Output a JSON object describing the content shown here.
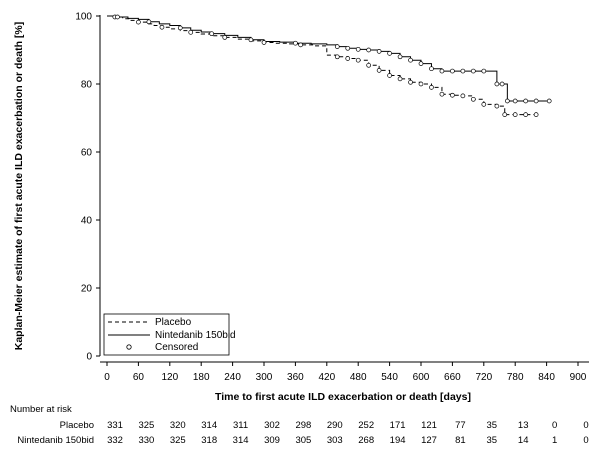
{
  "chart_data": {
    "type": "line",
    "subtype": "kaplan-meier",
    "title": "",
    "xlabel": "Time to first acute ILD exacerbation or death  [days]",
    "ylabel": "Kaplan-Meier estimate of first acute ILD exacerbation or death [%]",
    "xlim": [
      0,
      900
    ],
    "ylim": [
      0,
      100
    ],
    "x_ticks": [
      0,
      60,
      120,
      180,
      240,
      300,
      360,
      420,
      480,
      540,
      600,
      660,
      720,
      780,
      840,
      900
    ],
    "y_ticks": [
      0,
      20,
      40,
      60,
      80,
      100
    ],
    "grid": false,
    "legend_position": "bottom-left",
    "legend": [
      "Placebo",
      "Nintedanib 150bid",
      "Censored"
    ],
    "series": [
      {
        "name": "Placebo",
        "line_style": "dashed",
        "x": [
          0,
          15,
          30,
          45,
          60,
          75,
          90,
          105,
          120,
          140,
          160,
          180,
          200,
          225,
          250,
          275,
          300,
          320,
          345,
          370,
          395,
          420,
          440,
          460,
          480,
          500,
          520,
          540,
          560,
          580,
          600,
          620,
          640,
          660,
          680,
          700,
          720,
          745,
          760,
          780,
          800,
          820
        ],
        "y": [
          100,
          99.7,
          99.2,
          98.7,
          98.2,
          97.7,
          97.2,
          96.7,
          96.2,
          95.7,
          95.2,
          94.7,
          94.2,
          93.7,
          93.2,
          92.7,
          92.2,
          92.0,
          91.8,
          91.5,
          91.2,
          88.5,
          88.0,
          87.5,
          87.0,
          85.5,
          84.0,
          82.5,
          81.5,
          80.5,
          80.0,
          79.0,
          77.0,
          76.7,
          76.5,
          75.5,
          74.0,
          73.5,
          71.0,
          71.0,
          71.0,
          71.0
        ]
      },
      {
        "name": "Nintedanib 150bid",
        "line_style": "solid",
        "x": [
          0,
          20,
          40,
          60,
          80,
          100,
          120,
          140,
          160,
          180,
          200,
          225,
          250,
          275,
          300,
          330,
          360,
          390,
          420,
          440,
          460,
          480,
          500,
          520,
          540,
          560,
          580,
          600,
          620,
          640,
          660,
          680,
          700,
          720,
          745,
          755,
          765,
          780,
          800,
          820,
          845
        ],
        "y": [
          100,
          99.7,
          99.3,
          99.0,
          98.3,
          97.7,
          97.2,
          96.5,
          95.8,
          95.3,
          94.8,
          94.3,
          93.7,
          93.0,
          92.5,
          92.3,
          92.0,
          91.8,
          91.5,
          91.0,
          90.5,
          90.2,
          90.0,
          89.6,
          89.0,
          88.0,
          87.0,
          86.0,
          84.5,
          83.8,
          83.8,
          83.8,
          83.8,
          83.8,
          80.0,
          80.0,
          75.0,
          75.0,
          75.0,
          75.0,
          75.0
        ]
      }
    ],
    "number_at_risk": {
      "label": "Number at risk",
      "rows": [
        {
          "name": "Placebo",
          "values": [
            "331",
            "325",
            "320",
            "314",
            "311",
            "302",
            "298",
            "290",
            "252",
            "171",
            "121",
            "77",
            "35",
            "13",
            "0",
            "0"
          ]
        },
        {
          "name": "Nintedanib 150bid",
          "values": [
            "332",
            "330",
            "325",
            "318",
            "314",
            "309",
            "305",
            "303",
            "268",
            "194",
            "127",
            "81",
            "35",
            "14",
            "1",
            "0"
          ]
        }
      ]
    }
  }
}
